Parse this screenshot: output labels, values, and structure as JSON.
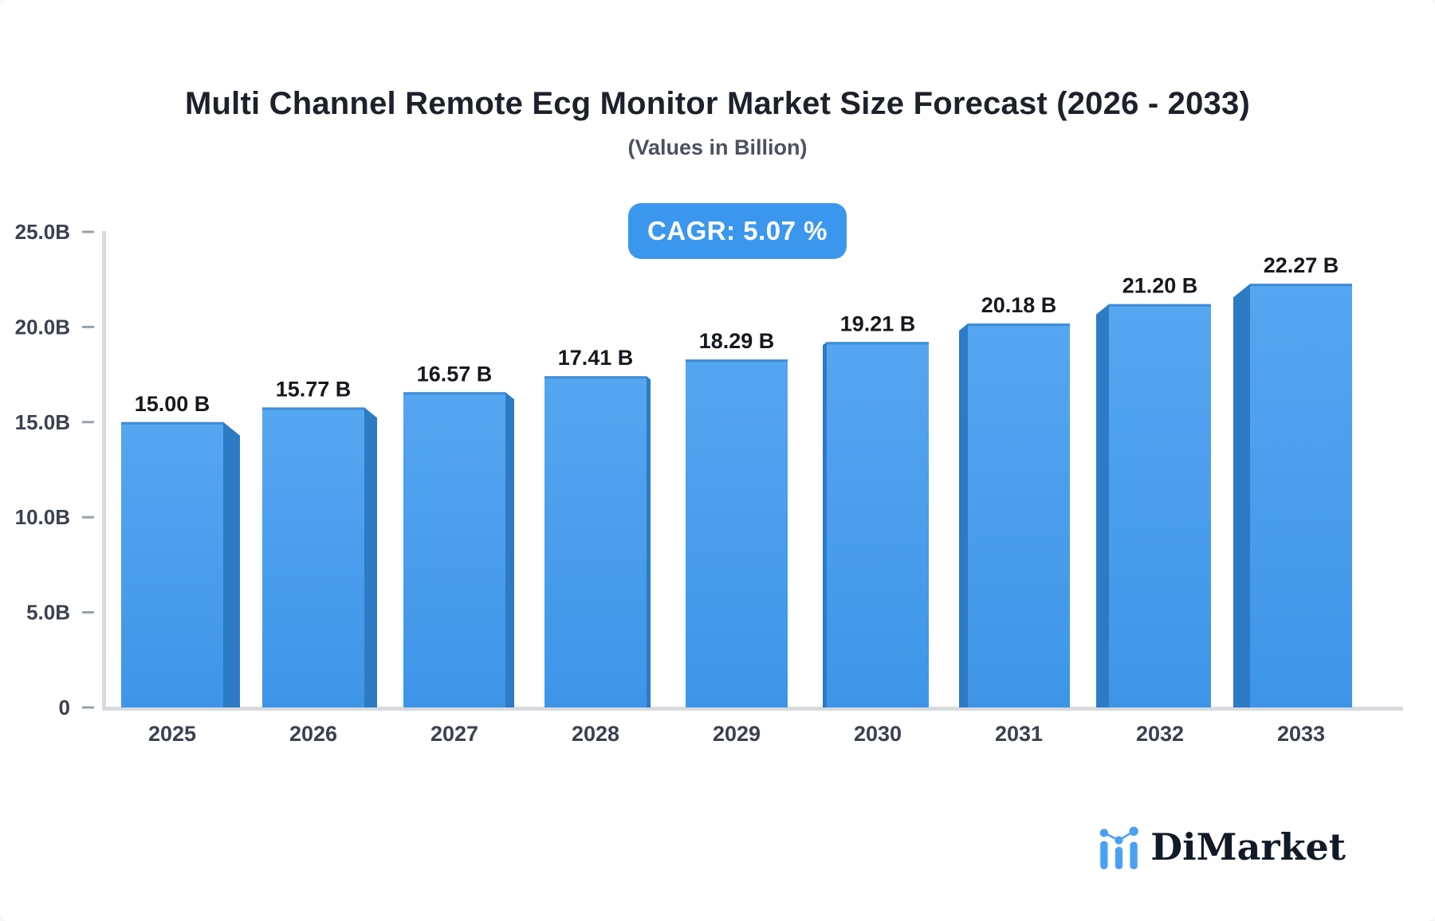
{
  "header": {
    "title": "Multi Channel Remote Ecg Monitor Market Size Forecast (2026 - 2033)",
    "subtitle": "(Values in Billion)"
  },
  "badge": {
    "label": "CAGR: 5.07 %"
  },
  "chart_data": {
    "type": "bar",
    "title": "Multi Channel Remote Ecg Monitor Market Size Forecast (2026 - 2033)",
    "subtitle": "(Values in Billion)",
    "categories": [
      "2025",
      "2026",
      "2027",
      "2028",
      "2029",
      "2030",
      "2031",
      "2032",
      "2033"
    ],
    "values": [
      15.0,
      15.77,
      16.57,
      17.41,
      18.29,
      19.21,
      20.18,
      21.2,
      22.27
    ],
    "bar_labels": [
      "15.00 B",
      "15.77 B",
      "16.57 B",
      "17.41 B",
      "18.29 B",
      "19.21 B",
      "20.18 B",
      "21.20 B",
      "22.27 B"
    ],
    "unit": "Billion",
    "ylim": [
      0,
      25
    ],
    "yticks": [
      {
        "v": 0,
        "label": "0"
      },
      {
        "v": 5,
        "label": "5.0B"
      },
      {
        "v": 10,
        "label": "10.0B"
      },
      {
        "v": 15,
        "label": "15.0B"
      },
      {
        "v": 20,
        "label": "20.0B"
      },
      {
        "v": 25,
        "label": "25.0B"
      }
    ],
    "grid": false,
    "legend": false,
    "colors": {
      "bar_face_top": "#55a6f0",
      "bar_face_bottom": "#3e95e8",
      "bar_side": "#2d7ac5",
      "bar_top_edge": "#3f8cd8",
      "axis_line": "#d8dade",
      "tick_mark": "#97a0ab"
    }
  },
  "footer": {
    "brand": "DiMarket"
  },
  "icons": {
    "logo": "bar-chart-logo-icon"
  }
}
